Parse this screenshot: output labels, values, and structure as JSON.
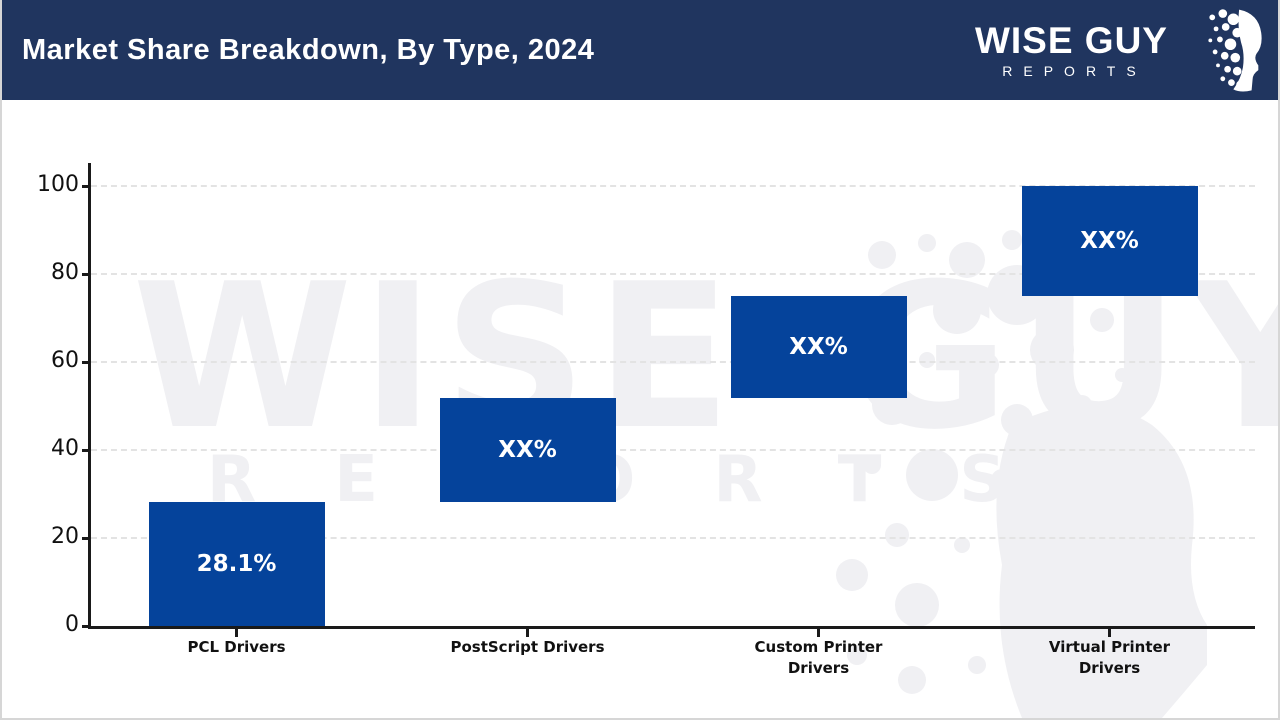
{
  "header": {
    "title": "Market Share Breakdown, By Type, 2024",
    "logo": {
      "line1": "WISE GUY",
      "line2": "REPORTS"
    }
  },
  "watermark": {
    "line1": "WISE GUY",
    "line2": "REPORTS"
  },
  "colors": {
    "header_bg": "#20355f",
    "bar": "#05439b",
    "bar_label": "#ffffff",
    "grid": "#e3e3e3",
    "axis": "#1a1a1a",
    "watermark": "#f0f0f3",
    "page_border": "#d6d6d6"
  },
  "chart_data": {
    "type": "bar",
    "subtype": "waterfall-floating-bars",
    "title": "Market Share Breakdown, By Type, 2024",
    "categories": [
      "PCL Drivers",
      "PostScript Drivers",
      "Custom Printer Drivers",
      "Virtual Printer Drivers"
    ],
    "category_lines": [
      [
        "PCL Drivers"
      ],
      [
        "PostScript Drivers"
      ],
      [
        "Custom Printer",
        "Drivers"
      ],
      [
        "Virtual Printer",
        "Drivers"
      ]
    ],
    "segments": [
      {
        "category": "PCL Drivers",
        "start": 0,
        "end": 28.1,
        "label": "28.1%"
      },
      {
        "category": "PostScript Drivers",
        "start": 28.1,
        "end": 51.9,
        "label": "XX%"
      },
      {
        "category": "Custom Printer Drivers",
        "start": 51.9,
        "end": 74.9,
        "label": "XX%"
      },
      {
        "category": "Virtual Printer Drivers",
        "start": 74.9,
        "end": 100,
        "label": "XX%"
      }
    ],
    "values_increment": [
      28.1,
      23.8,
      23.0,
      25.1
    ],
    "xlabel": "",
    "ylabel": "",
    "ylim": [
      0,
      100
    ],
    "yticks": [
      0,
      20,
      40,
      60,
      80,
      100
    ],
    "grid": "horizontal dashed",
    "legend": "none"
  }
}
